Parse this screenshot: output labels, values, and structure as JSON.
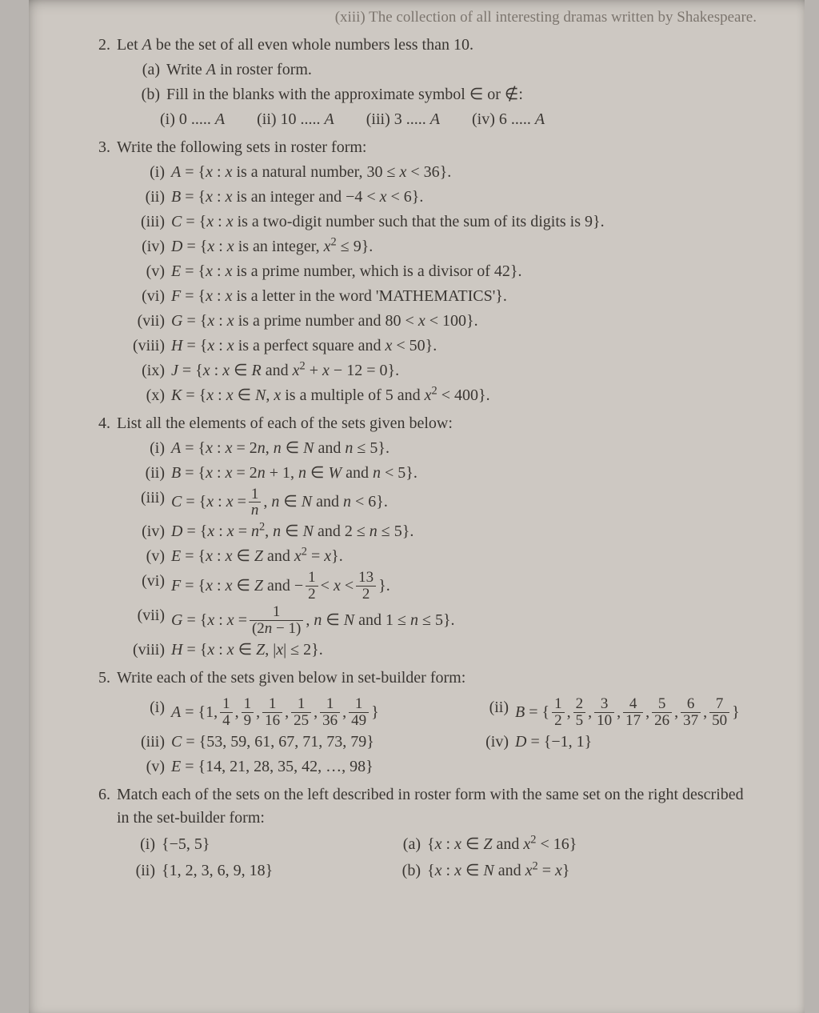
{
  "top_fragment": "(xiii) The collection of all interesting dramas written by Shakespeare.",
  "q2": {
    "num": "2.",
    "stem": "Let <span class='ital'>A</span> be the set of all even whole numbers less than 10.",
    "a_lbl": "(a)",
    "a_txt": "Write <span class='ital'>A</span> in roster form.",
    "b_lbl": "(b)",
    "b_txt": "Fill in the blanks with the approximate symbol ∈ or ∉:",
    "parts": {
      "i": "(i) 0 ..... <span class='ital'>A</span>",
      "ii": "(ii) 10 ..... <span class='ital'>A</span>",
      "iii": "(iii) 3 ..... <span class='ital'>A</span>",
      "iv": "(iv) 6 ..... <span class='ital'>A</span>"
    }
  },
  "q3": {
    "num": "3.",
    "stem": "Write the following sets in roster form:",
    "items": [
      {
        "lbl": "(i)",
        "txt": "<span class='ital'>A</span> = {<span class='ital'>x</span> : <span class='ital'>x</span> is a natural number, 30 ≤ <span class='ital'>x</span> < 36}."
      },
      {
        "lbl": "(ii)",
        "txt": "<span class='ital'>B</span> = {<span class='ital'>x</span> : <span class='ital'>x</span> is an integer and −4 < <span class='ital'>x</span> < 6}."
      },
      {
        "lbl": "(iii)",
        "txt": "<span class='ital'>C</span> = {<span class='ital'>x</span> : <span class='ital'>x</span> is a two-digit number such that the sum of its digits is 9}."
      },
      {
        "lbl": "(iv)",
        "txt": "<span class='ital'>D</span> = {<span class='ital'>x</span> : <span class='ital'>x</span> is an integer, <span class='ital'>x</span><sup>2</sup> ≤ 9}."
      },
      {
        "lbl": "(v)",
        "txt": "<span class='ital'>E</span> = {<span class='ital'>x</span> : <span class='ital'>x</span> is a prime number, which is a divisor of 42}."
      },
      {
        "lbl": "(vi)",
        "txt": "<span class='ital'>F</span> = {<span class='ital'>x</span> : <span class='ital'>x</span> is a letter in the word 'MATHEMATICS'}."
      },
      {
        "lbl": "(vii)",
        "txt": "<span class='ital'>G</span> = {<span class='ital'>x</span> : <span class='ital'>x</span> is a prime number and 80 < <span class='ital'>x</span> < 100}."
      },
      {
        "lbl": "(viii)",
        "txt": "<span class='ital'>H</span> = {<span class='ital'>x</span> : <span class='ital'>x</span> is a perfect square and <span class='ital'>x</span> < 50}."
      },
      {
        "lbl": "(ix)",
        "txt": "<span class='ital'>J</span> = {<span class='ital'>x</span> : <span class='ital'>x</span> ∈ <span class='ital'>R</span> and <span class='ital'>x</span><sup>2</sup> + <span class='ital'>x</span> − 12 = 0}."
      },
      {
        "lbl": "(x)",
        "txt": "<span class='ital'>K</span> = {<span class='ital'>x</span> : <span class='ital'>x</span> ∈ <span class='ital'>N</span>, <span class='ital'>x</span> is a multiple of 5 and <span class='ital'>x</span><sup>2</sup> < 400}."
      }
    ]
  },
  "q4": {
    "num": "4.",
    "stem": "List all the elements of each of the sets given below:",
    "items": [
      {
        "lbl": "(i)",
        "txt": "<span class='ital'>A</span> = {<span class='ital'>x</span> : <span class='ital'>x</span> = 2<span class='ital'>n</span>, <span class='ital'>n</span> ∈ <span class='ital'>N</span> and <span class='ital'>n</span> ≤ 5}."
      },
      {
        "lbl": "(ii)",
        "txt": "<span class='ital'>B</span> = {<span class='ital'>x</span> : <span class='ital'>x</span> = 2<span class='ital'>n</span> + 1, <span class='ital'>n</span> ∈ <span class='ital'>W</span> and <span class='ital'>n</span> < 5}."
      }
    ],
    "iii_lbl": "(iii)",
    "iii_pre": "<span class='ital'>C</span> = {<span class='ital'>x</span> : <span class='ital'>x</span> = ",
    "iii_frac_num": "1",
    "iii_frac_den": "<span class='ital'>n</span>",
    "iii_post": ", <span class='ital'>n</span> ∈ <span class='ital'>N</span> and <span class='ital'>n</span> < 6}.",
    "items2": [
      {
        "lbl": "(iv)",
        "txt": "<span class='ital'>D</span> = {<span class='ital'>x</span> : <span class='ital'>x</span> = <span class='ital'>n</span><sup>2</sup>, <span class='ital'>n</span> ∈ <span class='ital'>N</span> and 2 ≤ <span class='ital'>n</span> ≤ 5}."
      },
      {
        "lbl": "(v)",
        "txt": "<span class='ital'>E</span> = {<span class='ital'>x</span> : <span class='ital'>x</span> ∈ <span class='ital'>Z</span> and <span class='ital'>x</span><sup>2</sup> = <span class='ital'>x</span>}."
      }
    ],
    "vi_lbl": "(vi)",
    "vi_pre": "<span class='ital'>F</span> = {<span class='ital'>x</span> : <span class='ital'>x</span> ∈ <span class='ital'>Z</span> and − ",
    "vi_f1n": "1",
    "vi_f1d": "2",
    "vi_mid": " < <span class='ital'>x</span> < ",
    "vi_f2n": "13",
    "vi_f2d": "2",
    "vi_post": "}.",
    "vii_lbl": "(vii)",
    "vii_pre": "<span class='ital'>G</span> = {<span class='ital'>x</span> : <span class='ital'>x</span> = ",
    "vii_fn": "1",
    "vii_fd": "(2<span class='ital'>n</span> − 1)",
    "vii_post": ", <span class='ital'>n</span> ∈ <span class='ital'>N</span> and 1 ≤ <span class='ital'>n</span> ≤ 5}.",
    "viii": {
      "lbl": "(viii)",
      "txt": "<span class='ital'>H</span> = {<span class='ital'>x</span> : <span class='ital'>x</span> ∈ <span class='ital'>Z</span>, |<span class='ital'>x</span>| ≤ 2}."
    }
  },
  "q5": {
    "num": "5.",
    "stem": "Write each of the sets given below in set-builder form:",
    "i_lbl": "(i)",
    "i_pre": "<span class='ital'>A</span> = {1, ",
    "i_fracs": [
      [
        "1",
        "4"
      ],
      [
        "1",
        "9"
      ],
      [
        "1",
        "16"
      ],
      [
        "1",
        "25"
      ],
      [
        "1",
        "36"
      ],
      [
        "1",
        "49"
      ]
    ],
    "i_post": "}",
    "ii_lbl": "(ii)",
    "ii_pre": "<span class='ital'>B</span> = {",
    "ii_fracs": [
      [
        "1",
        "2"
      ],
      [
        "2",
        "5"
      ],
      [
        "3",
        "10"
      ],
      [
        "4",
        "17"
      ],
      [
        "5",
        "26"
      ],
      [
        "6",
        "37"
      ],
      [
        "7",
        "50"
      ]
    ],
    "ii_post": "}",
    "iii_lbl": "(iii)",
    "iii_txt": "<span class='ital'>C</span> = {53, 59, 61, 67, 71, 73, 79}",
    "iv_lbl": "(iv)",
    "iv_txt": "<span class='ital'>D</span> = {−1, 1}",
    "v_lbl": "(v)",
    "v_txt": "<span class='ital'>E</span> = {14, 21, 28, 35, 42, …, 98}"
  },
  "q6": {
    "num": "6.",
    "stem": "Match each of the sets on the left described in roster form with the same set on the right described in the set-builder form:",
    "rows": [
      {
        "ll": "(i)",
        "lt": "{−5, 5}",
        "rl": "(a)",
        "rt": "{<span class='ital'>x</span> : <span class='ital'>x</span> ∈ <span class='ital'>Z</span> and <span class='ital'>x</span><sup>2</sup> < 16}"
      },
      {
        "ll": "(ii)",
        "lt": "{1, 2, 3, 6, 9, 18}",
        "rl": "(b)",
        "rt": "{<span class='ital'>x</span> : <span class='ital'>x</span> ∈ <span class='ital'>N</span> and <span class='ital'>x</span><sup>2</sup> = <span class='ital'>x</span>}"
      }
    ]
  }
}
